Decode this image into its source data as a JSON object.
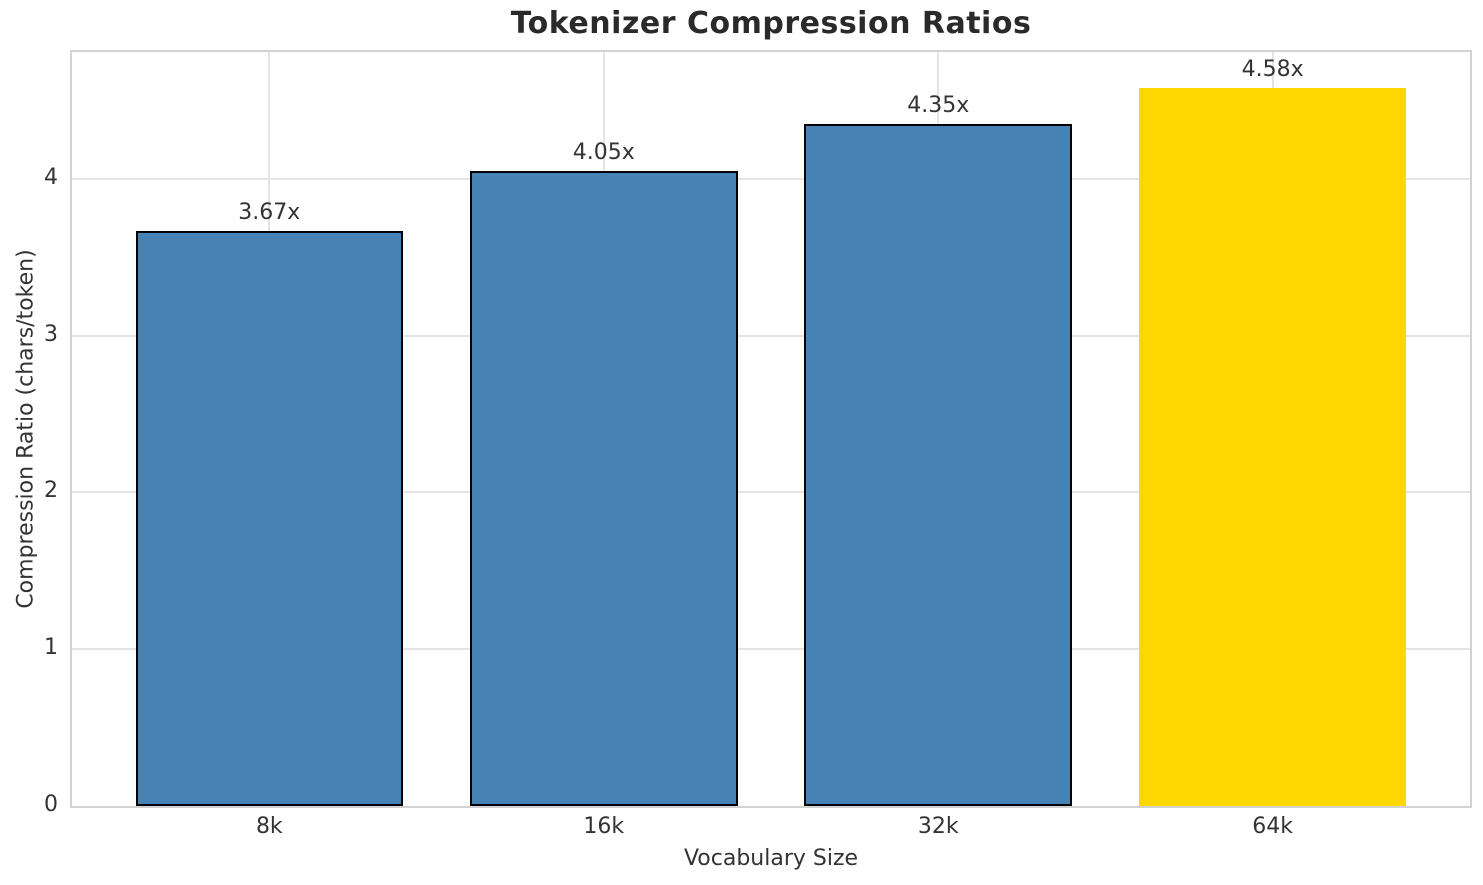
{
  "chart_data": {
    "type": "bar",
    "title": "Tokenizer Compression Ratios",
    "xlabel": "Vocabulary Size",
    "ylabel": "Compression Ratio (chars/token)",
    "categories": [
      "8k",
      "16k",
      "32k",
      "64k"
    ],
    "values": [
      3.67,
      4.05,
      4.35,
      4.58
    ],
    "bar_labels": [
      "3.67x",
      "4.05x",
      "4.35x",
      "4.58x"
    ],
    "bar_colors": [
      "#4682B4",
      "#4682B4",
      "#4682B4",
      "#FFD700"
    ],
    "bar_edge_colors": [
      "#000000",
      "#000000",
      "#000000",
      "none"
    ],
    "yticks": [
      0,
      1,
      2,
      3,
      4
    ],
    "ylim": [
      0,
      4.81
    ],
    "bar_width_fraction": 0.8,
    "x_margin_units": 0.19,
    "grid": true,
    "legend": "none",
    "colors": {
      "bar_blue": "#4682B4",
      "bar_gold": "#FFD700",
      "bar_edge": "#000000",
      "grid": "#e4e4e4",
      "spine": "#d2d2d2",
      "text": "#333333",
      "title_text": "#2a2a2a",
      "background": "#ffffff"
    }
  }
}
